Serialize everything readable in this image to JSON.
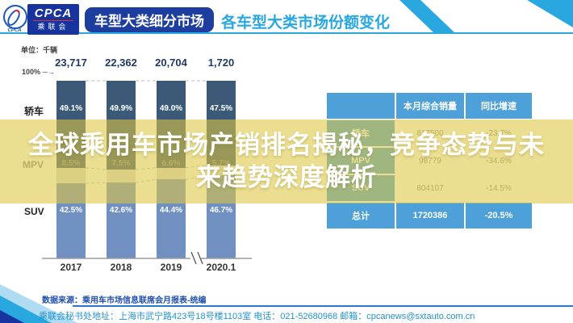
{
  "header": {
    "logo_cpca": "CPCA",
    "logo_assoc": "乘联会",
    "emblem_caption": "CPCA",
    "title": "车型大类细分市场",
    "subtitle": "各车型大类市场份额变化"
  },
  "colors": {
    "accent_cyan": "#29A8E0",
    "accent_navy": "#1D3E9E",
    "table_blue": "#4DA0D8",
    "banner_yellow": "rgba(221,199,66,0.58)"
  },
  "chart_data": {
    "type": "bar",
    "stacked": true,
    "unit_label": "单位：千辆",
    "axis_100_label": "100%",
    "categories": [
      "2017",
      "2018",
      "2019",
      "2020.1"
    ],
    "totals": [
      "23,717",
      "22,362",
      "20,704",
      "1,720"
    ],
    "series": [
      {
        "name": "轿车",
        "values": [
          49.1,
          49.9,
          49.0,
          47.5
        ],
        "color": "#3C5A78",
        "label_color": "#ffffff"
      },
      {
        "name": "MPV",
        "values": [
          8.5,
          7.5,
          6.6,
          5.7
        ],
        "color": "#DCDCDC",
        "label_color": "#8a8a8a"
      },
      {
        "name": "SUV",
        "values": [
          42.5,
          42.6,
          44.4,
          46.7
        ],
        "color": "#7090C2",
        "label_color": "#ffffff"
      }
    ],
    "ylim": [
      0,
      100
    ],
    "axis_break_between": [
      "2019",
      "2020.1"
    ],
    "grid": false,
    "legend": "category labels at left of bars"
  },
  "table": {
    "headers": [
      "",
      "本月综合销量",
      "同比增速"
    ],
    "rows": [
      {
        "label": "轿车",
        "sales": "817500",
        "yoy": "-23.7%"
      },
      {
        "label": "MPV",
        "sales": "98779",
        "yoy": "-34.6%"
      },
      {
        "label": "SUV",
        "sales": "804107",
        "yoy": "-14.5%"
      }
    ],
    "total": {
      "label": "总计",
      "sales": "1720386",
      "yoy": "-20.5%"
    }
  },
  "banner": {
    "line1": "全球乘用车市场产销排名揭秘，竞争态势与未",
    "line2": "来趋势深度解析"
  },
  "footer": {
    "source": "数据来源：乘用车市场信息联席会月报表-统编",
    "contact": "乘联会秘书处地址：上海市武宁路423号18号楼1103室 电话：021-52680968 邮箱：cpcanews@sxtauto.com.cn"
  }
}
